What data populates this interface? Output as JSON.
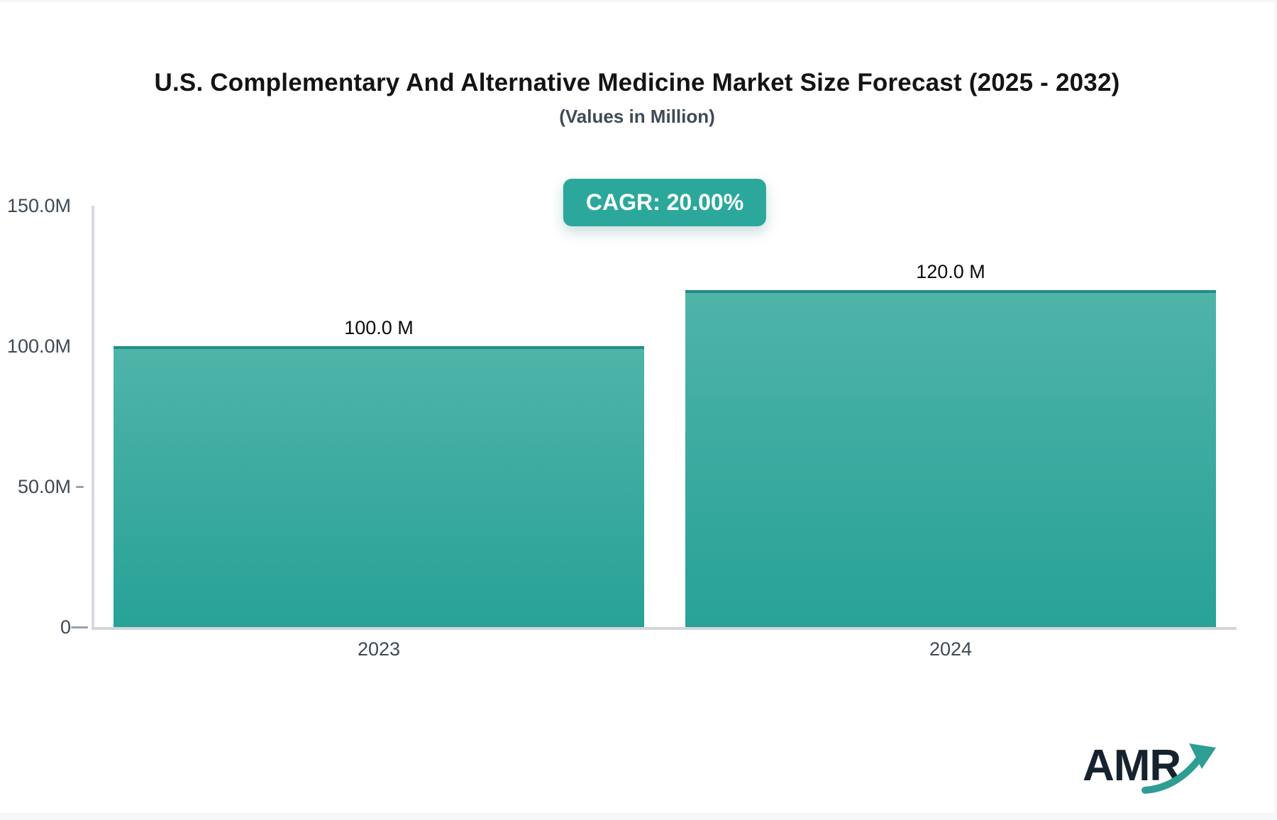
{
  "page": {
    "title": "U.S. Complementary And Alternative Medicine Market Size Forecast (2025 - 2032)",
    "subtitle": "(Values in Million)",
    "cagr_label": "CAGR: 20.00%",
    "brand": "AMR"
  },
  "colors": {
    "bar_gradient_top": "#4FB4A9",
    "bar_gradient_bottom": "#28A297",
    "bar_top_border": "#1F8E84",
    "badge_bg": "#2BA89B",
    "badge_text": "#FFFFFF",
    "axis_line": "#D7DADE",
    "axis_label_text": "#3E4956",
    "title_text": "#141414",
    "value_label_text": "#0B0B0B",
    "logo_text": "#16222E",
    "logo_arrow": "#2E9D94",
    "card_bg": "#FFFFFF",
    "page_bg": "#F6F7F9"
  },
  "chart_data": {
    "type": "bar",
    "title": "U.S. Complementary And Alternative Medicine Market Size Forecast (2025 - 2032)",
    "subtitle": "(Values in Million)",
    "cagr_pct": 20.0,
    "categories": [
      "2023",
      "2024"
    ],
    "values": [
      100.0,
      120.0
    ],
    "value_labels": [
      "100.0 M",
      "120.0 M"
    ],
    "unit": "Million",
    "ylim": [
      0,
      150
    ],
    "y_axis": [
      {
        "label": "150.0M",
        "tick": "none"
      },
      {
        "label": "100.0M",
        "tick": "none"
      },
      {
        "label": "50.0M",
        "tick": "short"
      },
      {
        "label": "0",
        "tick": "long"
      }
    ],
    "grid": false,
    "legend": false,
    "bar_orientation": "vertical"
  }
}
